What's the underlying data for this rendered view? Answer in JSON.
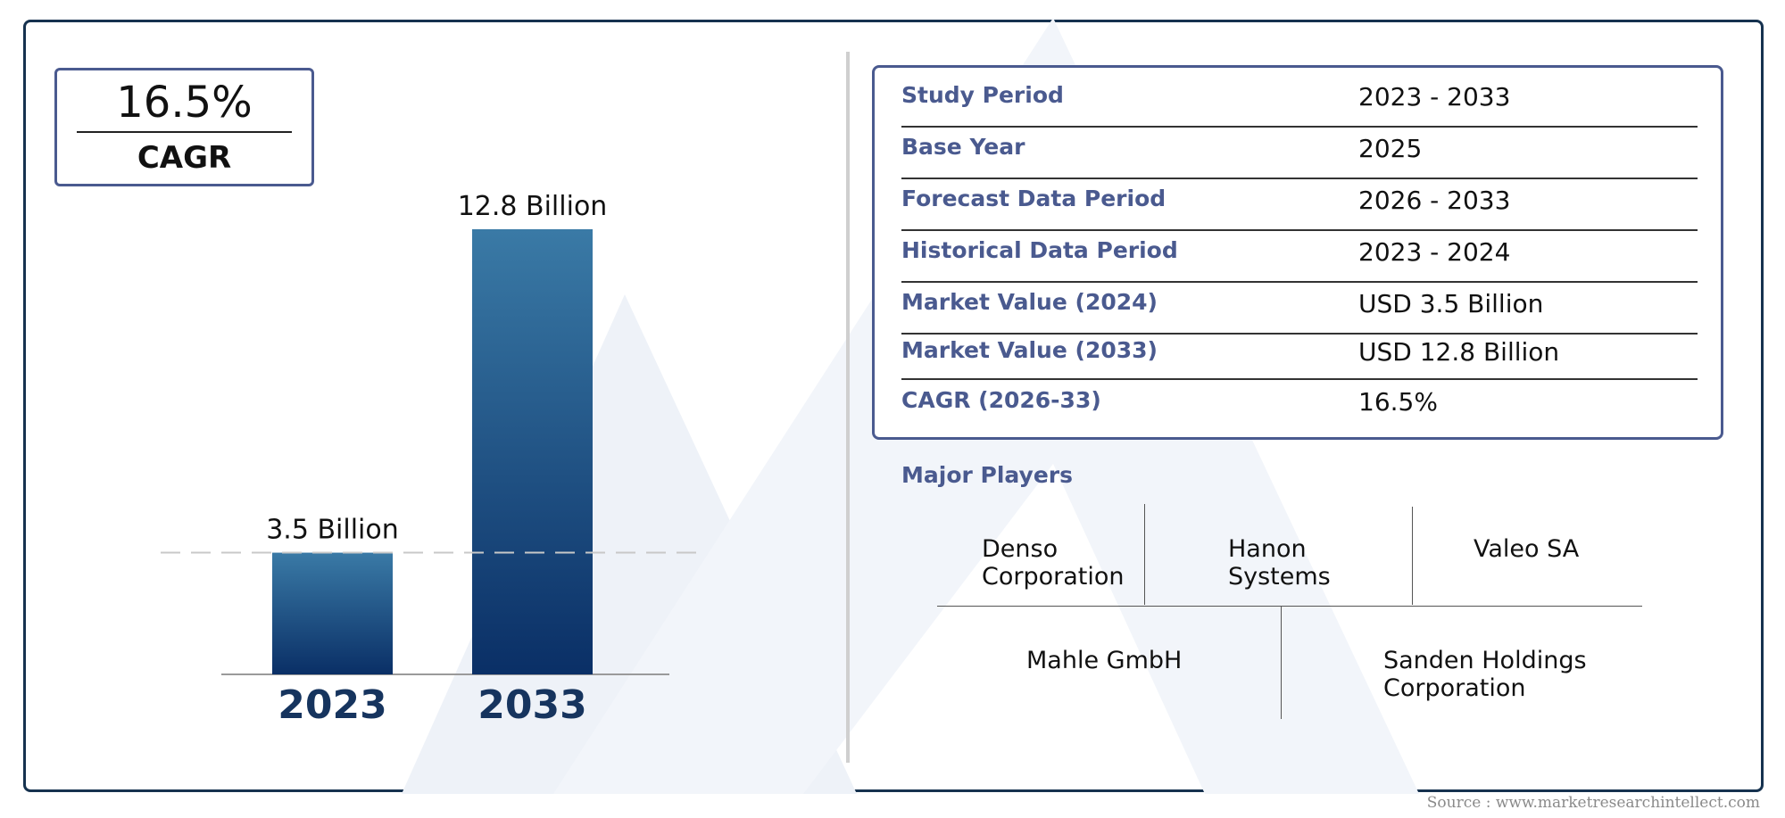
{
  "cagr_box": {
    "value": "16.5%",
    "label": "CAGR"
  },
  "chart_data": {
    "type": "bar",
    "categories": [
      "2023",
      "2033"
    ],
    "values": [
      3.5,
      12.8
    ],
    "data_labels": [
      "3.5 Billion",
      "12.8 Billion"
    ],
    "title": "",
    "xlabel": "",
    "ylabel": "",
    "ylim": [
      0,
      12.8
    ],
    "grid": false,
    "reference_line": 3.5,
    "colors": {
      "bar_top": "#3a7aa6",
      "bar_bottom": "#0a2f66",
      "category_text": "#16345e"
    }
  },
  "info_table": {
    "rows": [
      {
        "label": "Study Period",
        "value": "2023 - 2033"
      },
      {
        "label": "Base Year",
        "value": "2025"
      },
      {
        "label": "Forecast Data Period",
        "value": "2026 - 2033"
      },
      {
        "label": "Historical Data Period",
        "value": "2023 - 2024"
      },
      {
        "label": "Market Value (2024)",
        "value": "USD 3.5 Billion"
      },
      {
        "label": "Market Value (2033)",
        "value": "USD 12.8 Billion"
      },
      {
        "label": "CAGR (2026-33)",
        "value": "16.5%"
      }
    ]
  },
  "players": {
    "title": "Major Players",
    "row1": [
      "Denso\nCorporation",
      "Hanon\nSystems",
      "Valeo SA"
    ],
    "row2": [
      "Mahle GmbH",
      "Sanden Holdings\nCorporation"
    ]
  },
  "source": "Source : www.marketresearchintellect.com",
  "colors": {
    "frame": "#16324f",
    "accent": "#4a5a8f",
    "watermark": "#eef2f8"
  }
}
